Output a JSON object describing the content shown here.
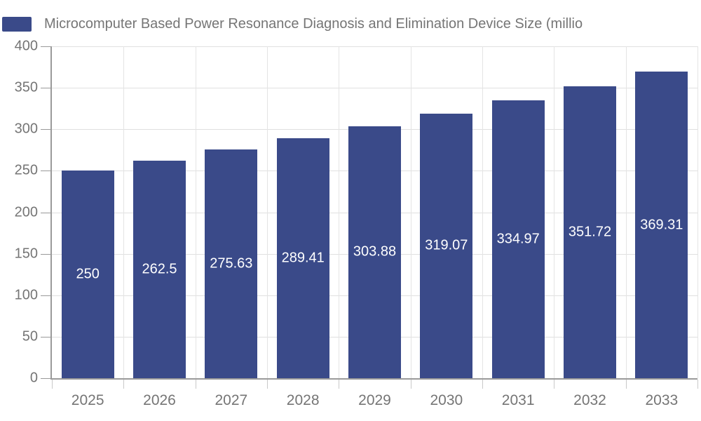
{
  "legend": {
    "series_label": "Microcomputer Based Power Resonance Diagnosis and Elimination Device Size (millio"
  },
  "chart_data": {
    "type": "bar",
    "title": "Microcomputer Based Power Resonance Diagnosis and Elimination Device Size (millio",
    "categories": [
      "2025",
      "2026",
      "2027",
      "2028",
      "2029",
      "2030",
      "2031",
      "2032",
      "2033"
    ],
    "values": [
      250,
      262.5,
      275.63,
      289.41,
      303.88,
      319.07,
      334.97,
      351.72,
      369.31
    ],
    "value_labels": [
      "250",
      "262.5",
      "275.63",
      "289.41",
      "303.88",
      "319.07",
      "334.97",
      "351.72",
      "369.31"
    ],
    "xlabel": "",
    "ylabel": "",
    "ylim": [
      0,
      400
    ],
    "ytick_step": 50,
    "ytick_labels": [
      "0",
      "50",
      "100",
      "150",
      "200",
      "250",
      "300",
      "350",
      "400"
    ],
    "grid": true,
    "legend_position": "top-left",
    "colors": {
      "bar": "#3A4A89",
      "bar_value_text": "#FFFFFF",
      "axis_line": "#9A9A9A",
      "grid_line": "#E0E0E0",
      "axis_text": "#757575"
    }
  }
}
